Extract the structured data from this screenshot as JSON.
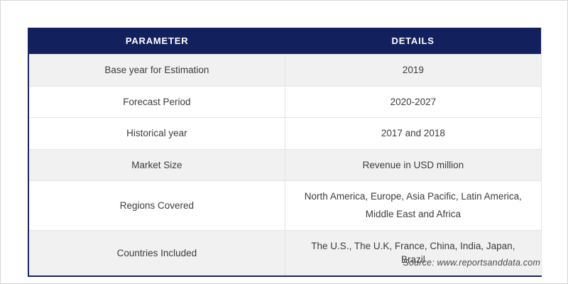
{
  "chart_data": {
    "type": "table",
    "columns": [
      "PARAMETER",
      "DETAILS"
    ],
    "rows": [
      [
        "Base year for Estimation",
        "2019"
      ],
      [
        "Forecast Period",
        "2020-2027"
      ],
      [
        "Historical year",
        "2017 and 2018"
      ],
      [
        "Market Size",
        "Revenue in USD million"
      ],
      [
        "Regions Covered",
        "North America, Europe, Asia Pacific, Latin America, Middle East and Africa"
      ],
      [
        "Countries Included",
        "The U.S., The U.K, France, China, India, Japan, Brazil"
      ]
    ]
  },
  "table": {
    "headers": [
      "PARAMETER",
      "DETAILS"
    ],
    "rows": [
      {
        "parameter": "Base year for Estimation",
        "details": "2019"
      },
      {
        "parameter": "Forecast Period",
        "details": "2020-2027"
      },
      {
        "parameter": "Historical year",
        "details": "2017 and 2018"
      },
      {
        "parameter": "Market Size",
        "details": "Revenue in USD million"
      },
      {
        "parameter": "Regions Covered",
        "details": "North America, Europe, Asia Pacific, Latin America, Middle East and Africa"
      },
      {
        "parameter": "Countries Included",
        "details": "The U.S., The U.K, France, China, India, Japan, Brazil"
      }
    ]
  },
  "source": "Source: www.reportsanddata.com",
  "colors": {
    "header_bg": "#13205e",
    "row_alt_bg": "#f1f1f1",
    "border": "#e4e4e4"
  }
}
